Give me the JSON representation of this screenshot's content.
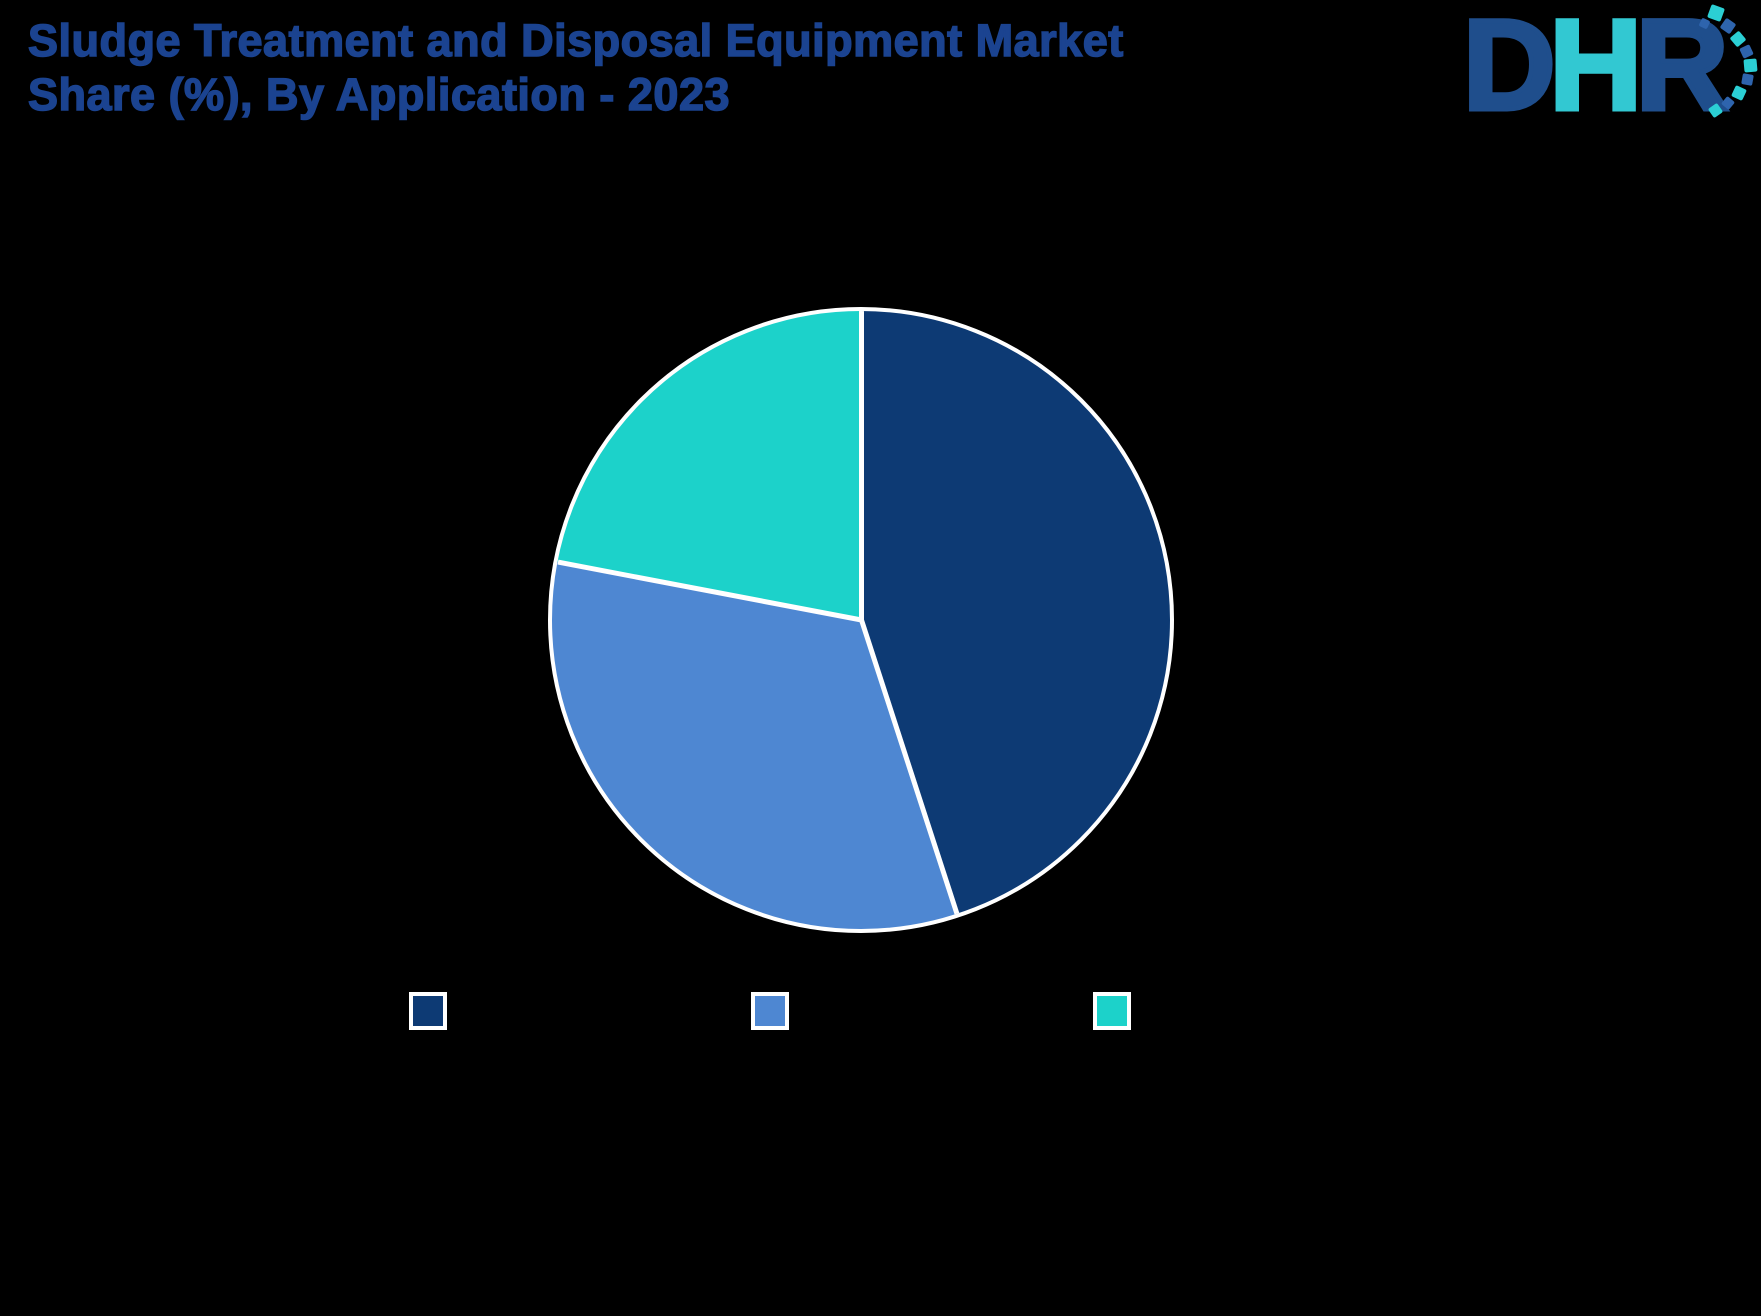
{
  "page": {
    "background": "#000000"
  },
  "header": {
    "title_line1": "Sludge Treatment and Disposal Equipment Market",
    "title_line2": "Share (%), By Application - 2023",
    "title_color": "#1b4390"
  },
  "logo": {
    "letters": [
      {
        "char": "D",
        "color": "#1f4e8c"
      },
      {
        "char": "H",
        "color": "#32c8d2"
      },
      {
        "char": "R",
        "color": "#1f4e8c"
      }
    ],
    "dot_teal": "#2bcfd4",
    "dot_blue": "#2e64ad"
  },
  "chart_data": {
    "type": "pie",
    "title": "Sludge Treatment and Disposal Equipment Market Share (%), By Application - 2023",
    "unit": "%",
    "start_angle_deg": 0,
    "direction": "clockwise",
    "slice_border_color": "#ffffff",
    "segments": [
      {
        "label": "",
        "value": 45,
        "color": "#0d3a74"
      },
      {
        "label": "",
        "value": 33,
        "color": "#4e87d2"
      },
      {
        "label": "",
        "value": 22,
        "color": "#1cd2ca"
      }
    ],
    "legend": {
      "position": "bottom",
      "labels_visible": false
    }
  }
}
